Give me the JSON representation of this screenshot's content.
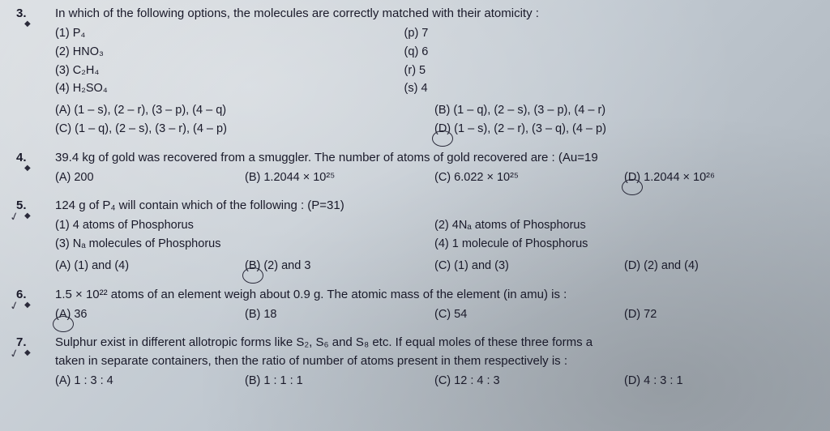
{
  "page": {
    "background_gradient": [
      "#d8dce0",
      "#c0c8d0",
      "#a8b0b8"
    ],
    "text_color": "#1a1a2a",
    "font_family": "Arial, sans-serif"
  },
  "q3": {
    "number": "3.",
    "text": "In which of the following options, the molecules are correctly matched with their atomicity :",
    "left_items": {
      "1": "(1) P₄",
      "2": "(2) HNO₃",
      "3": "(3) C₂H₄",
      "4": "(4) H₂SO₄"
    },
    "right_items": {
      "p": "(p) 7",
      "q": "(q) 6",
      "r": "(r) 5",
      "s": "(s) 4"
    },
    "options": {
      "A": "(A) (1 – s), (2 – r), (3 – p), (4 – q)",
      "B": "(B) (1 – q), (2 – s), (3 – p), (4 – r)",
      "C": "(C) (1 – q), (2 – s), (3 – r), (4 – p)",
      "D": "(D) (1 – s), (2 – r), (3 – q), (4 – p)"
    }
  },
  "q4": {
    "number": "4.",
    "text": "39.4 kg of gold was recovered from a smuggler. The number of atoms of gold recovered are : (Au=19",
    "options": {
      "A": "(A) 200",
      "B": "(B) 1.2044 × 10²⁵",
      "C": "(C) 6.022 × 10²⁵",
      "D": "(D) 1.2044 × 10²⁶"
    }
  },
  "q5": {
    "number": "5.",
    "text_prefix": "124 g of P₄ will contain which of the following : (P=31)",
    "sub_items": {
      "1": "(1) 4 atoms of Phosphorus",
      "2": "(2) 4Nₐ atoms of Phosphorus",
      "3": "(3) Nₐ molecules of Phosphorus",
      "4": "(4) 1 molecule of Phosphorus"
    },
    "options": {
      "A": "(A) (1) and (4)",
      "B": "(B) (2) and 3",
      "C": "(C) (1) and (3)",
      "D": "(D) (2) and (4)"
    }
  },
  "q6": {
    "number": "6.",
    "text": "1.5 × 10²² atoms of an element weigh about 0.9 g. The atomic mass of the element (in amu) is :",
    "options": {
      "A": "(A) 36",
      "B": "(B) 18",
      "C": "(C) 54",
      "D": "(D) 72"
    }
  },
  "q7": {
    "number": "7.",
    "text": "Sulphur exist in different allotropic forms like S₂, S₆ and S₈ etc. If equal moles of these three forms a",
    "text2": "taken in separate containers, then the ratio of number of atoms present in them respectively is :",
    "options_partial": {
      "A_prefix": "(A) 1 : 3 : 4",
      "B_prefix": "(B) 1 : 1 : 1",
      "C_prefix": "(C) 12 : 4 : 3",
      "D_prefix": "(D) 4 : 3 : 1"
    }
  }
}
